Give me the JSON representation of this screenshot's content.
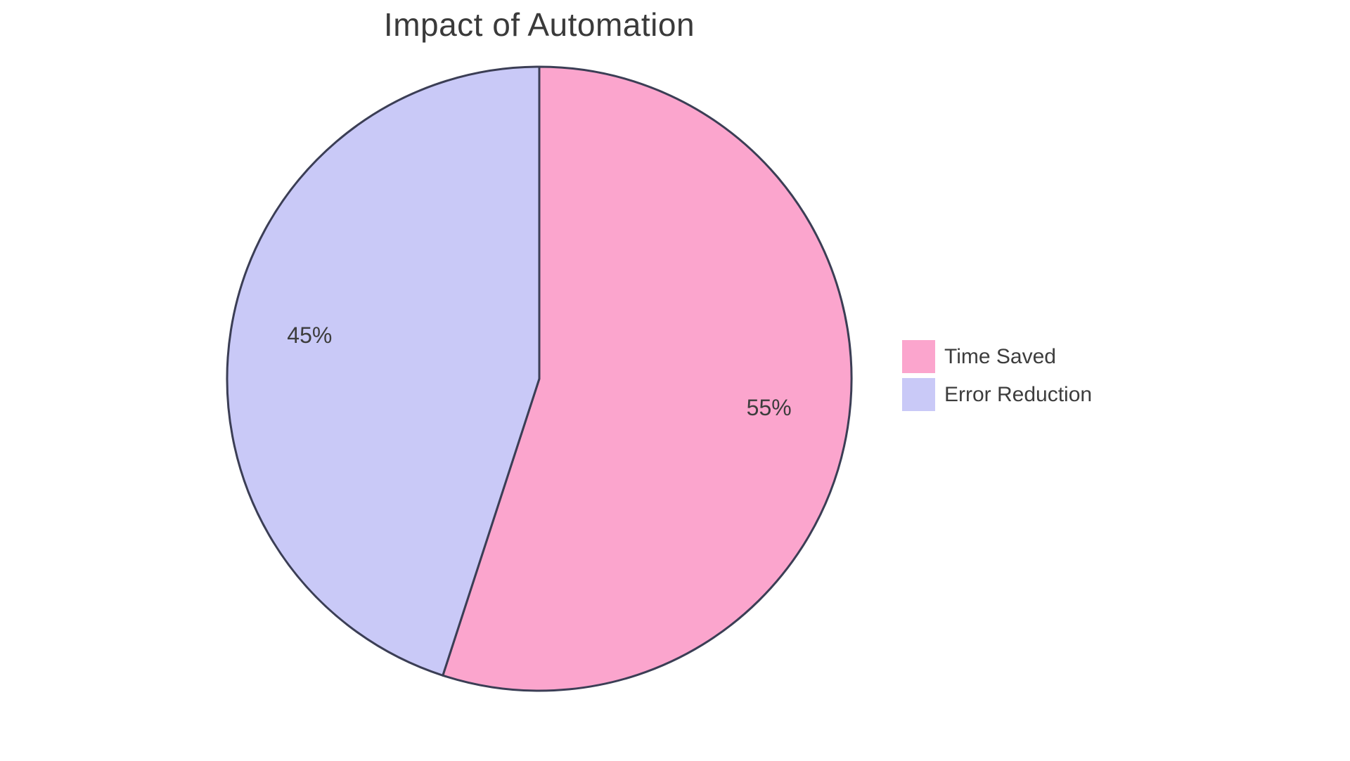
{
  "title": "Impact of Automation",
  "colors": {
    "slice_pink": "#FBA5CD",
    "slice_lavender": "#C9C9F7",
    "stroke": "#3B3E55",
    "title_text": "#3A3A3A",
    "label_text": "#3D3D3D",
    "background": "#FFFFFF"
  },
  "chart_data": {
    "type": "pie",
    "title": "Impact of Automation",
    "labels": [
      "Time Saved",
      "Error Reduction"
    ],
    "values": [
      55,
      45
    ],
    "value_labels": [
      "55%",
      "45%"
    ],
    "slice_colors": [
      "#FBA5CD",
      "#C9C9F7"
    ],
    "stroke_color": "#3B3E55",
    "start_angle": "top",
    "direction": "clockwise",
    "legend_position": "right",
    "legend_items": [
      {
        "label": "Time Saved",
        "color": "#FBA5CD"
      },
      {
        "label": "Error Reduction",
        "color": "#C9C9F7"
      }
    ]
  }
}
